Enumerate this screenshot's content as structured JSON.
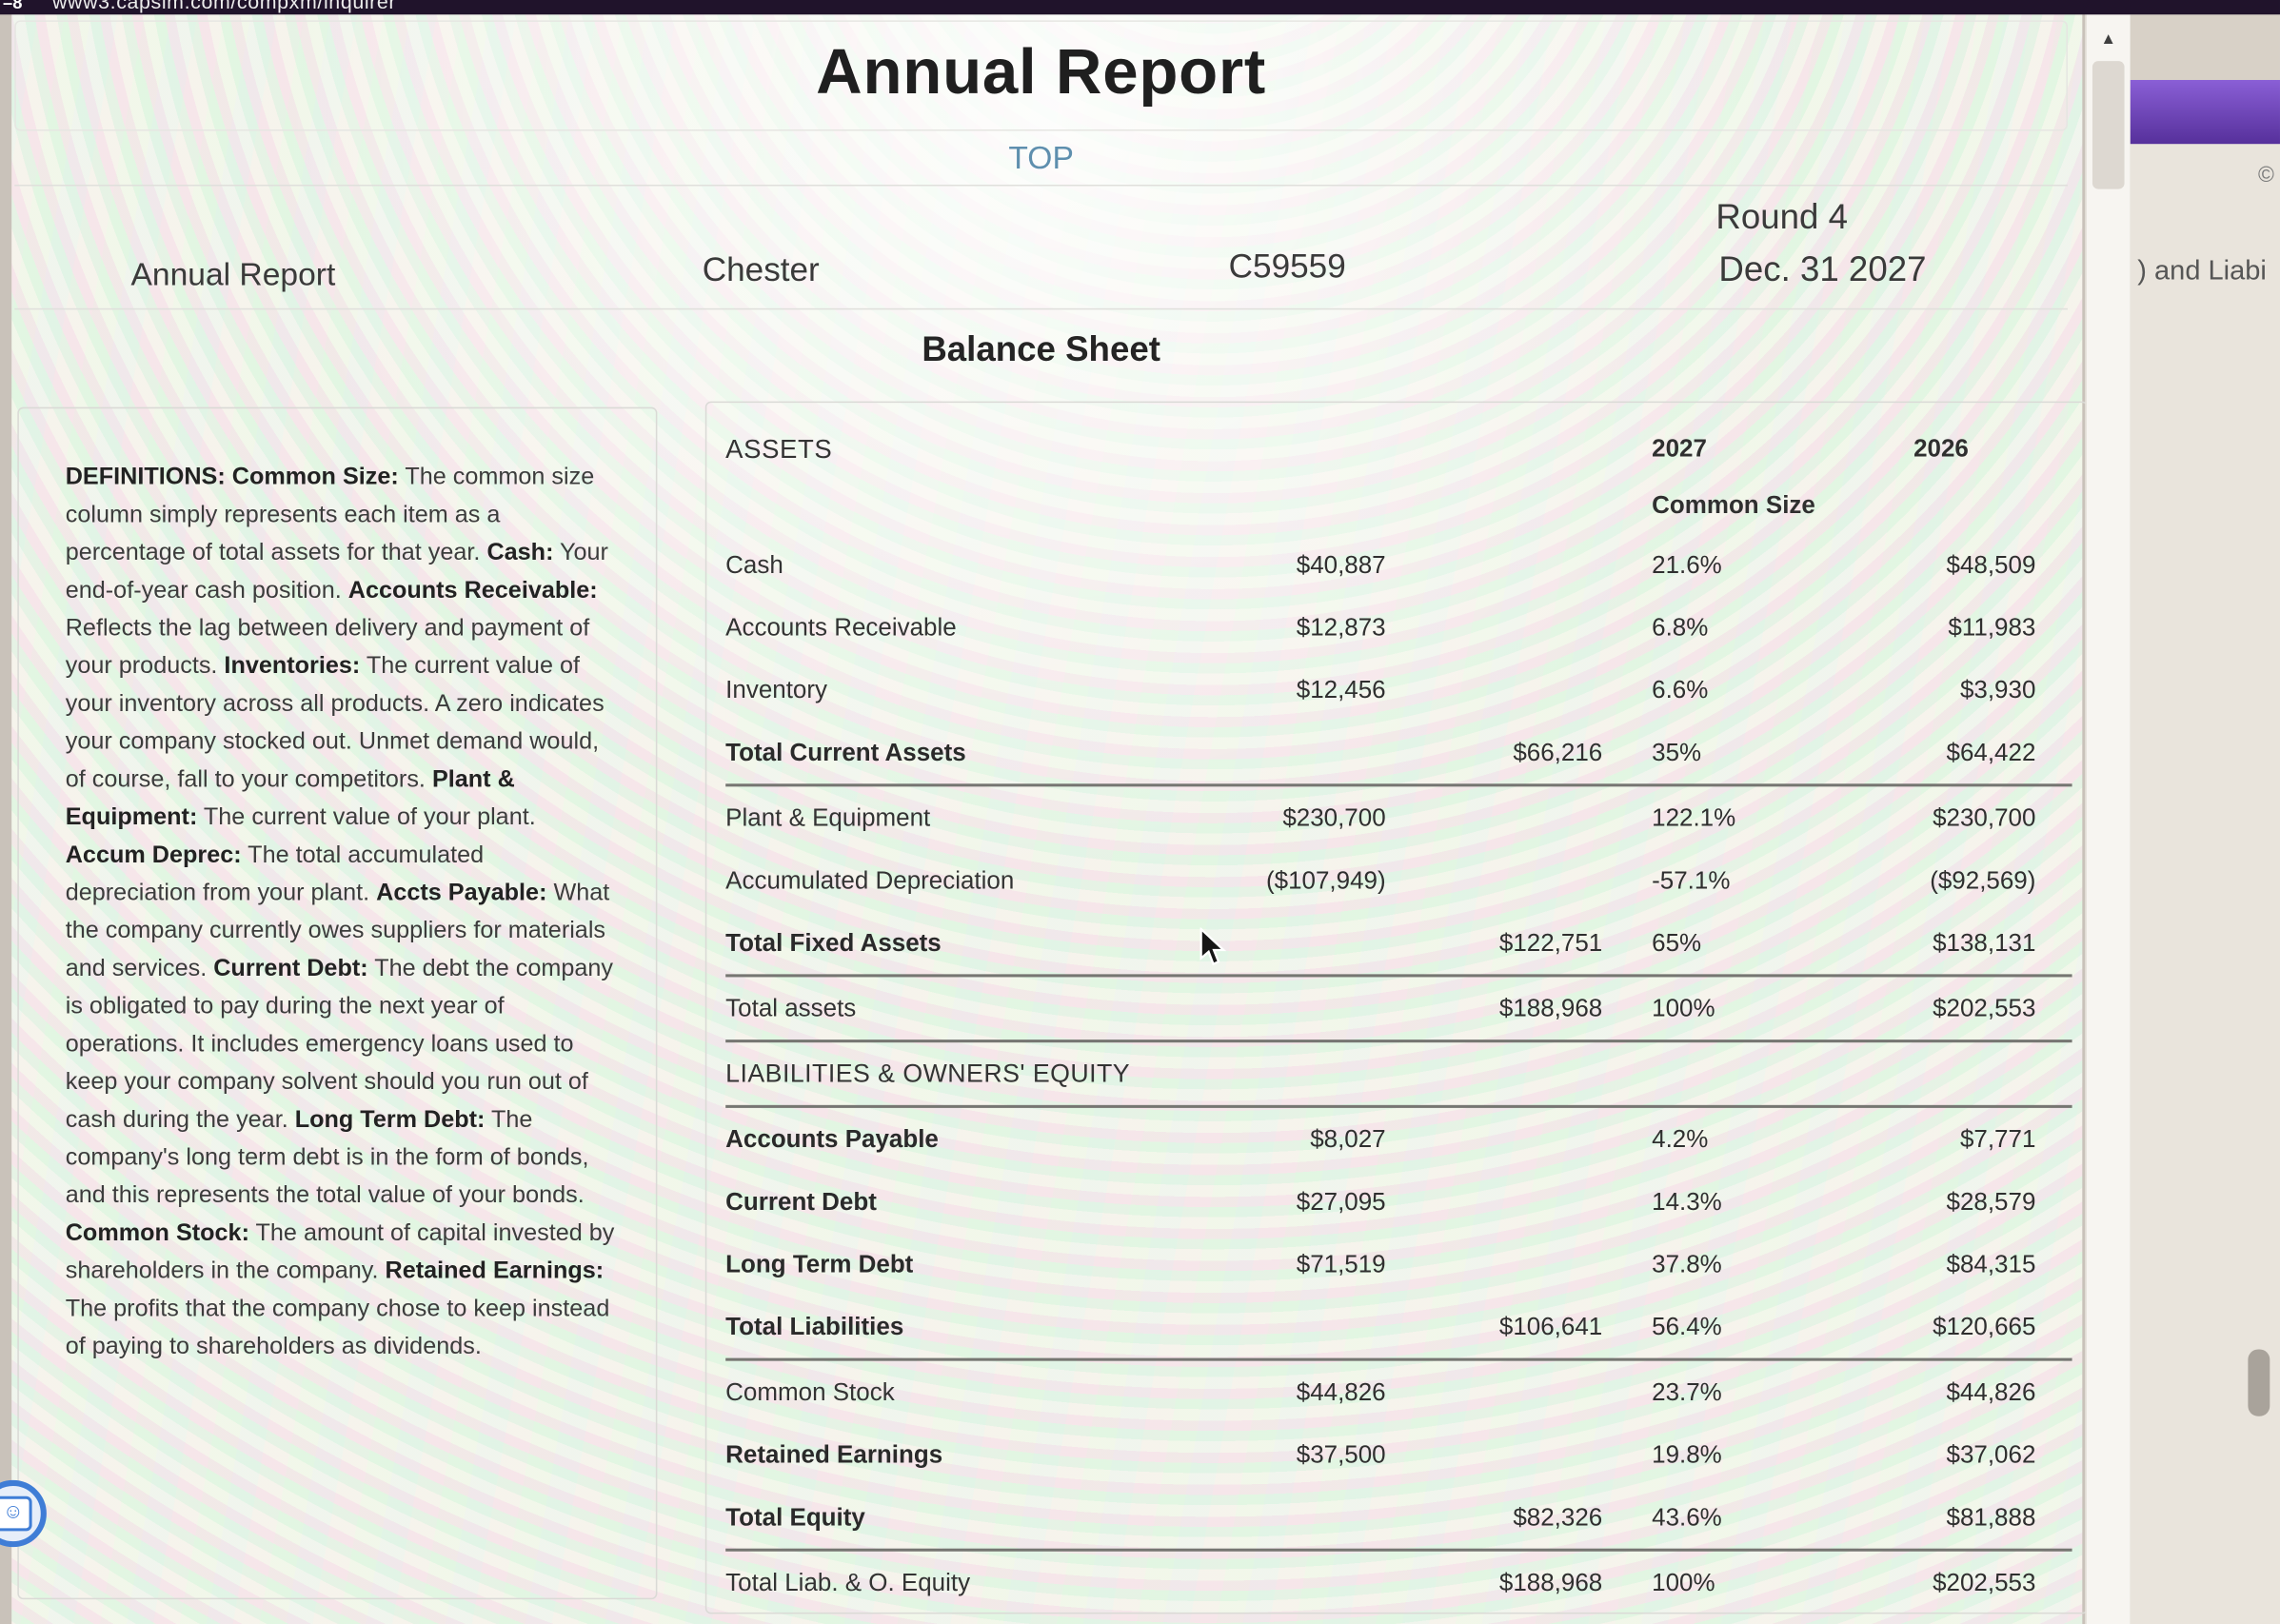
{
  "browser": {
    "url_fragment": "www3.capsim.com/compxm/inquirer",
    "window_fragment": "–8"
  },
  "report": {
    "title": "Annual Report",
    "top_link": "TOP",
    "name": "Annual Report",
    "company": "Chester",
    "company_code": "C59559",
    "round": "Round 4",
    "date": "Dec. 31 2027",
    "section": "Balance Sheet"
  },
  "definitions": {
    "segments": [
      {
        "b": "DEFINITIONS: Common Size:",
        "t": " The common size column simply represents each item as a percentage of total assets for that year. "
      },
      {
        "b": "Cash:",
        "t": " Your end-of-year cash position. "
      },
      {
        "b": "Accounts Receivable:",
        "t": " Reflects the lag between delivery and payment of your products. "
      },
      {
        "b": "Inventories:",
        "t": " The current value of your inventory across all products. A zero indicates your company stocked out. Unmet demand would, of course, fall to your competitors. "
      },
      {
        "b": "Plant & Equipment:",
        "t": " The current value of your plant. "
      },
      {
        "b": "Accum Deprec:",
        "t": " The total accumulated depreciation from your plant. "
      },
      {
        "b": "Accts Payable:",
        "t": " What the company currently owes suppliers for materials and services. "
      },
      {
        "b": "Current Debt:",
        "t": " The debt the company is obligated to pay during the next year of operations. It includes emergency loans used to keep your company solvent should you run out of cash during the year. "
      },
      {
        "b": "Long Term Debt:",
        "t": " The company's long term debt is in the form of bonds, and this represents the total value of your bonds. "
      },
      {
        "b": "Common Stock:",
        "t": " The amount of capital invested by shareholders in the company. "
      },
      {
        "b": "Retained Earnings:",
        "t": " The profits that the company chose to keep instead of paying to shareholders as dividends."
      }
    ]
  },
  "balance_sheet": {
    "assets_label": "ASSETS",
    "year_current": "2027",
    "year_prior": "2026",
    "common_size_label": "Common Size",
    "rows": [
      {
        "label": "Cash",
        "v1": "$40,887",
        "cs": "21.6%",
        "prior": "$48,509"
      },
      {
        "label": "Accounts Receivable",
        "v1": "$12,873",
        "cs": "6.8%",
        "prior": "$11,983"
      },
      {
        "label": "Inventory",
        "v1": "$12,456",
        "cs": "6.6%",
        "prior": "$3,930"
      },
      {
        "label": "Total Current Assets",
        "v2": "$66,216",
        "cs": "35%",
        "prior": "$64,422",
        "bold": true,
        "sep": true
      },
      {
        "label": "Plant & Equipment",
        "v1": "$230,700",
        "cs": "122.1%",
        "prior": "$230,700"
      },
      {
        "label": "Accumulated Depreciation",
        "v1": "($107,949)",
        "cs": "-57.1%",
        "prior": "($92,569)"
      },
      {
        "label": "Total Fixed Assets",
        "v2": "$122,751",
        "cs": "65%",
        "prior": "$138,131",
        "bold": true,
        "sep": true
      },
      {
        "label": "Total assets",
        "v2": "$188,968",
        "cs": "100%",
        "prior": "$202,553",
        "sep": true
      },
      {
        "label": "LIABILITIES & OWNERS' EQUITY",
        "type": "section",
        "sep": true
      },
      {
        "label": "Accounts Payable",
        "v1": "$8,027",
        "cs": "4.2%",
        "prior": "$7,771",
        "bold": true
      },
      {
        "label": "Current Debt",
        "v1": "$27,095",
        "cs": "14.3%",
        "prior": "$28,579",
        "bold": true
      },
      {
        "label": "Long Term Debt",
        "v1": "$71,519",
        "cs": "37.8%",
        "prior": "$84,315",
        "bold": true
      },
      {
        "label": "Total Liabilities",
        "v2": "$106,641",
        "cs": "56.4%",
        "prior": "$120,665",
        "bold": true,
        "sep": true
      },
      {
        "label": "Common Stock",
        "v1": "$44,826",
        "cs": "23.7%",
        "prior": "$44,826"
      },
      {
        "label": "Retained Earnings",
        "v1": "$37,500",
        "cs": "19.8%",
        "prior": "$37,062",
        "bold": true
      },
      {
        "label": "Total Equity",
        "v2": "$82,326",
        "cs": "43.6%",
        "prior": "$81,888",
        "bold": true,
        "sep": true
      },
      {
        "label": "Total Liab. & O. Equity",
        "v2": "$188,968",
        "cs": "100%",
        "prior": "$202,553"
      }
    ]
  },
  "side_window": {
    "partial_text": ") and Liabi",
    "copyright": "©"
  },
  "scrollbar": {
    "up_arrow": "▲"
  },
  "chat": {
    "face": "☺"
  }
}
